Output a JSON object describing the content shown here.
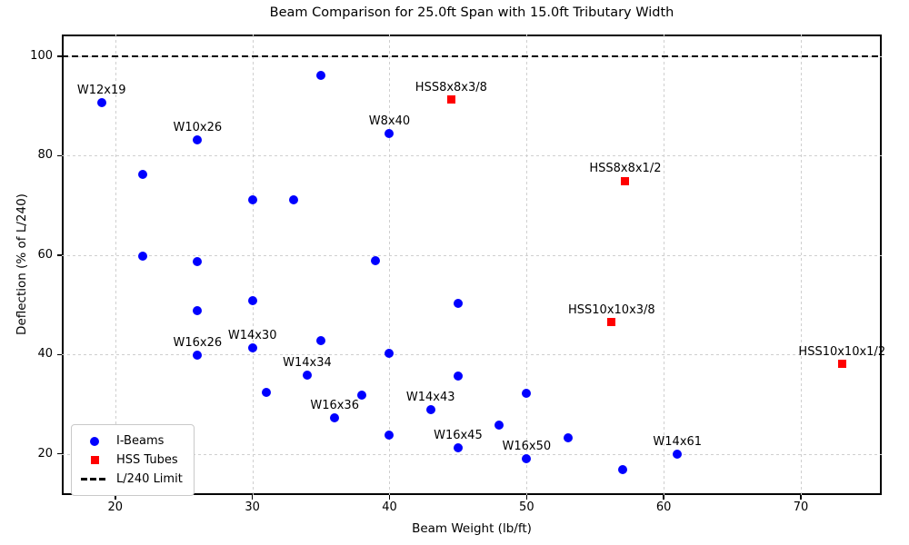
{
  "chart_data": {
    "type": "scatter",
    "title": "Beam Comparison for 25.0ft Span with 15.0ft Tributary Width",
    "xlabel": "Beam Weight (lb/ft)",
    "ylabel": "Deflection (% of L/240)",
    "xlim": [
      16.1,
      75.9
    ],
    "ylim": [
      11.7,
      104.4
    ],
    "xticks": [
      20,
      30,
      40,
      50,
      60,
      70
    ],
    "yticks": [
      20,
      40,
      60,
      80,
      100
    ],
    "grid": true,
    "legend_position": "lower-left",
    "limit_line": {
      "y": 100,
      "label": "L/240 Limit",
      "color": "#000000",
      "style": "dashed"
    },
    "series": [
      {
        "name": "I-Beams",
        "marker": "circle",
        "color": "#0000ff",
        "points": [
          {
            "x": 19,
            "y": 90.7,
            "label": "W12x19"
          },
          {
            "x": 22,
            "y": 76.2
          },
          {
            "x": 22,
            "y": 59.7
          },
          {
            "x": 26,
            "y": 83.2,
            "label": "W10x26"
          },
          {
            "x": 26,
            "y": 58.6
          },
          {
            "x": 26,
            "y": 48.9
          },
          {
            "x": 26,
            "y": 39.8,
            "label": "W16x26"
          },
          {
            "x": 30,
            "y": 71.1
          },
          {
            "x": 30,
            "y": 50.8
          },
          {
            "x": 30,
            "y": 41.3,
            "label": "W14x30"
          },
          {
            "x": 31,
            "y": 32.3
          },
          {
            "x": 33,
            "y": 71.1
          },
          {
            "x": 34,
            "y": 35.9,
            "label": "W14x34"
          },
          {
            "x": 35,
            "y": 96.1
          },
          {
            "x": 35,
            "y": 42.7
          },
          {
            "x": 36,
            "y": 27.2,
            "label": "W16x36"
          },
          {
            "x": 38,
            "y": 31.9
          },
          {
            "x": 39,
            "y": 58.8
          },
          {
            "x": 40,
            "y": 84.5,
            "label": "W8x40"
          },
          {
            "x": 40,
            "y": 40.2
          },
          {
            "x": 40,
            "y": 23.8
          },
          {
            "x": 43,
            "y": 28.9,
            "label": "W14x43"
          },
          {
            "x": 45,
            "y": 50.2
          },
          {
            "x": 45,
            "y": 35.6
          },
          {
            "x": 45,
            "y": 21.2,
            "label": "W16x45"
          },
          {
            "x": 48,
            "y": 25.7
          },
          {
            "x": 50,
            "y": 32.2
          },
          {
            "x": 50,
            "y": 19.1,
            "label": "W16x50"
          },
          {
            "x": 53,
            "y": 23.2
          },
          {
            "x": 57,
            "y": 16.9
          },
          {
            "x": 61,
            "y": 20.0,
            "label": "W14x61"
          }
        ]
      },
      {
        "name": "HSS Tubes",
        "marker": "square",
        "color": "#ff0000",
        "points": [
          {
            "x": 44.5,
            "y": 91.3,
            "label": "HSS8x8x3/8"
          },
          {
            "x": 57.2,
            "y": 74.9,
            "label": "HSS8x8x1/2"
          },
          {
            "x": 56.2,
            "y": 46.5,
            "label": "HSS10x10x3/8"
          },
          {
            "x": 73.0,
            "y": 38.1,
            "label": "HSS10x10x1/2"
          }
        ]
      }
    ]
  }
}
